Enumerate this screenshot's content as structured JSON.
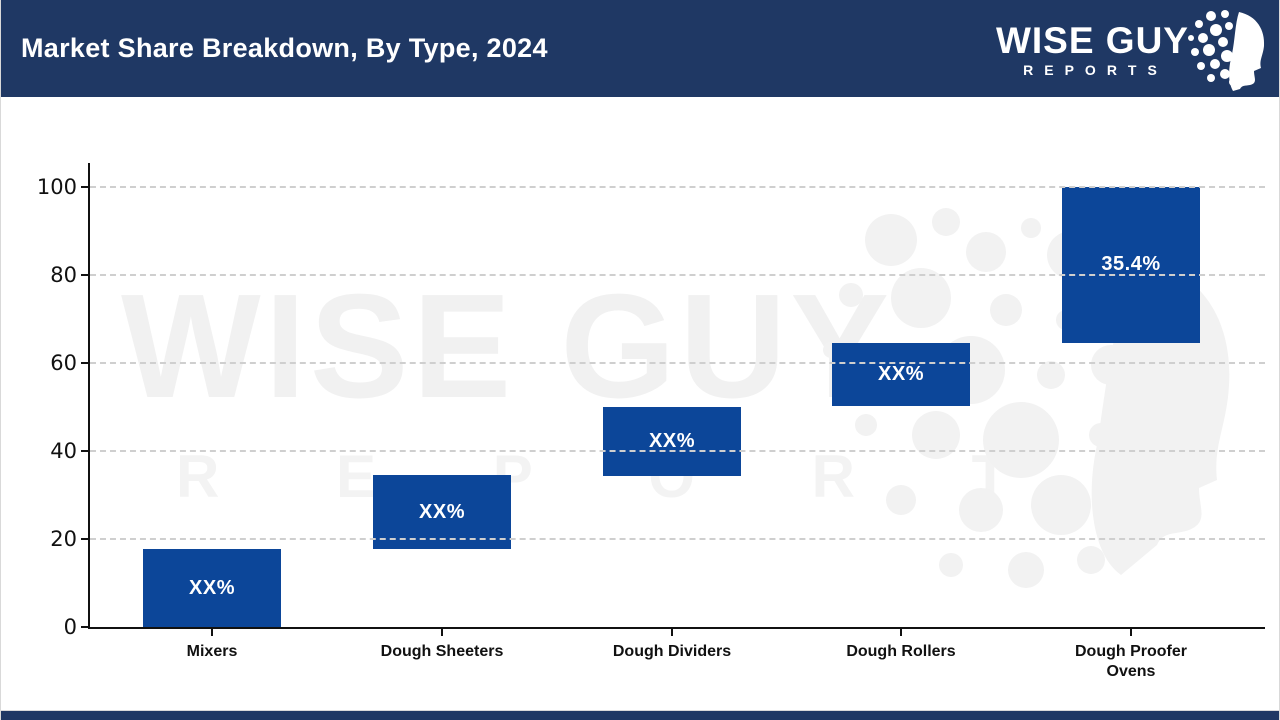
{
  "header": {
    "title": "Market Share Breakdown, By Type, 2024",
    "logo_line1": "WISE GUY",
    "logo_line2": "REPORTS",
    "bg_color": "#1f3864"
  },
  "watermark": {
    "line1": "WISE GUY",
    "line2": "R E P O R T S"
  },
  "chart_data": {
    "type": "bar",
    "subtype": "floating-waterfall",
    "title": "Market Share Breakdown, By Type, 2024",
    "categories": [
      "Mixers",
      "Dough Sheeters",
      "Dough Dividers",
      "Dough Rollers",
      "Dough Proofer Ovens"
    ],
    "bars": [
      {
        "category": "Mixers",
        "base": 0,
        "top": 17.7,
        "label": "XX%"
      },
      {
        "category": "Dough Sheeters",
        "base": 17.7,
        "top": 34.5,
        "label": "XX%"
      },
      {
        "category": "Dough Dividers",
        "base": 34.4,
        "top": 49.9,
        "label": "XX%"
      },
      {
        "category": "Dough Rollers",
        "base": 50.2,
        "top": 64.6,
        "label": "XX%"
      },
      {
        "category": "Dough Proofer Ovens",
        "base": 64.6,
        "top": 100,
        "label": "35.4%"
      }
    ],
    "y_ticks": [
      0,
      20,
      40,
      60,
      80,
      100
    ],
    "ylim": [
      0,
      100
    ],
    "xlabel": "",
    "ylabel": "",
    "legend": "none",
    "grid": "horizontal-dashed-above-bars",
    "bar_color": "#0c4699",
    "grid_color": "#cfcfcf",
    "axis_color": "#111111",
    "label_color": "#ffffff"
  },
  "footer": {
    "bg_color": "#1f3864"
  }
}
